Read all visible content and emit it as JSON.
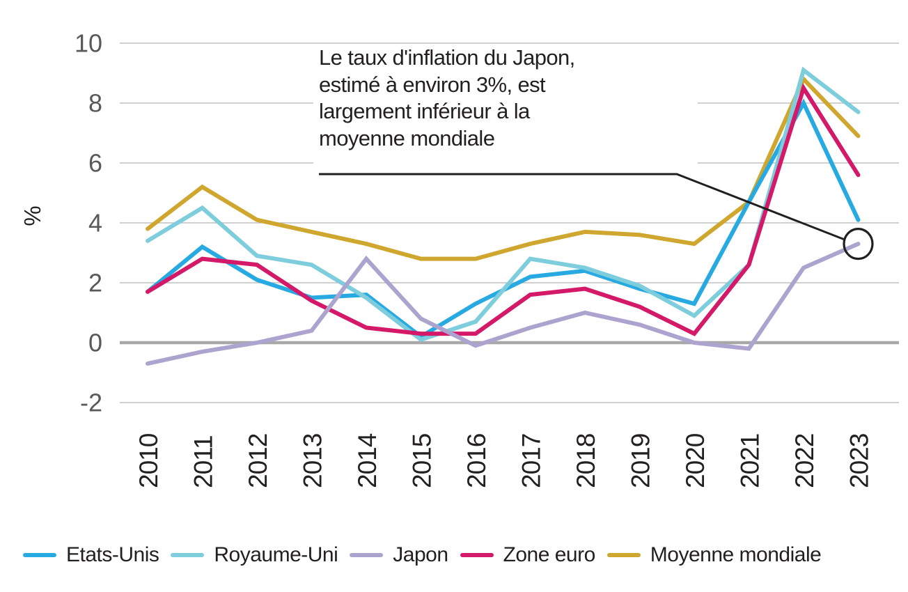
{
  "chart_data": {
    "type": "line",
    "title": "",
    "xlabel": "",
    "ylabel": "%",
    "ylim": [
      -2,
      10
    ],
    "y_ticks": [
      10,
      8,
      6,
      4,
      2,
      0,
      -2
    ],
    "grid": "horizontal",
    "legend_position": "bottom",
    "x": [
      2010,
      2011,
      2012,
      2013,
      2014,
      2015,
      2016,
      2017,
      2018,
      2019,
      2020,
      2021,
      2022,
      2023
    ],
    "series": [
      {
        "name": "Etats-Unis",
        "color": "#27aae1",
        "values": [
          1.7,
          3.2,
          2.1,
          1.5,
          1.6,
          0.2,
          1.3,
          2.2,
          2.4,
          1.8,
          1.3,
          4.7,
          8.0,
          4.1
        ]
      },
      {
        "name": "Royaume-Uni",
        "color": "#7dcddc",
        "values": [
          3.4,
          4.5,
          2.9,
          2.6,
          1.5,
          0.1,
          0.7,
          2.8,
          2.5,
          1.9,
          0.9,
          2.6,
          9.1,
          7.7
        ]
      },
      {
        "name": "Japon",
        "color": "#aca4ce",
        "values": [
          -0.7,
          -0.3,
          0.0,
          0.4,
          2.8,
          0.8,
          -0.1,
          0.5,
          1.0,
          0.6,
          0.0,
          -0.2,
          2.5,
          3.3
        ]
      },
      {
        "name": "Zone euro",
        "color": "#d31968",
        "values": [
          1.7,
          2.8,
          2.6,
          1.4,
          0.5,
          0.3,
          0.3,
          1.6,
          1.8,
          1.2,
          0.3,
          2.6,
          8.5,
          5.6
        ]
      },
      {
        "name": "Moyenne mondiale",
        "color": "#cfa72e",
        "values": [
          3.8,
          5.2,
          4.1,
          3.7,
          3.3,
          2.8,
          2.8,
          3.3,
          3.7,
          3.6,
          3.3,
          4.7,
          8.8,
          6.9
        ]
      }
    ],
    "annotation": {
      "text": "Le taux d'inflation du Japon,\nestimé à environ 3%, est\nlargement inférieur à la\nmoyenne mondiale",
      "highlighted_series": "Japon",
      "highlighted_year": 2023,
      "highlighted_value": 3.3
    },
    "axis_colors": {
      "gridline": "#b3b3b3",
      "zero_line": "#a8a8a8",
      "y_tick_label": "#58595b",
      "x_tick_label": "#231f20",
      "annotation_line": "#231f20"
    }
  }
}
